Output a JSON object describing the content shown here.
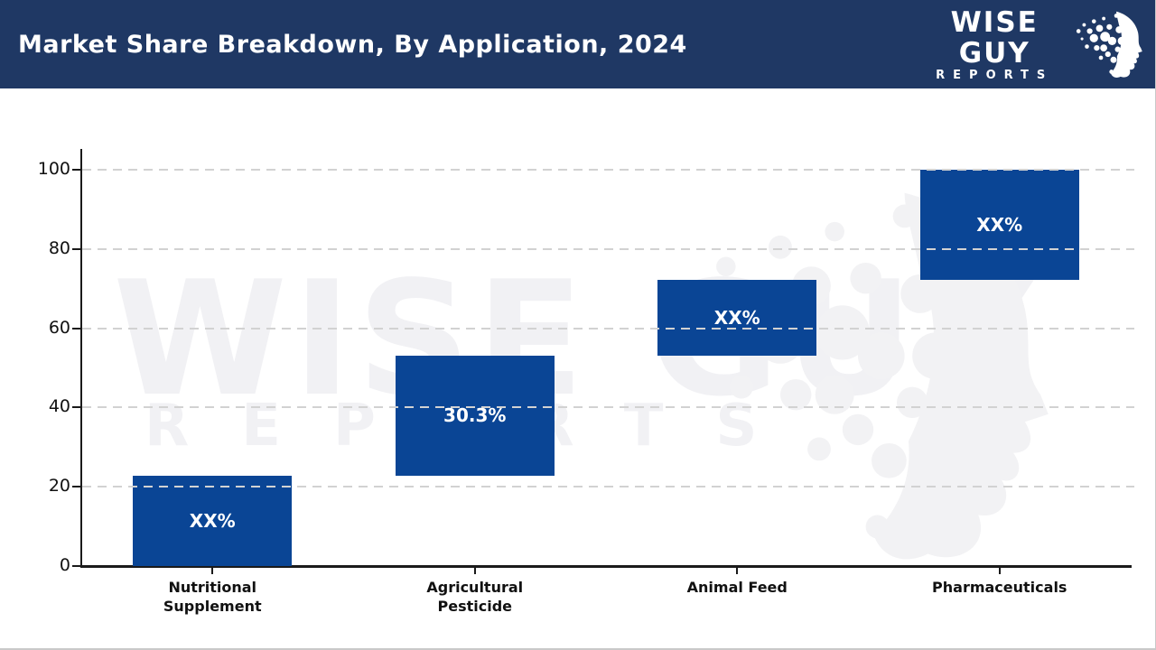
{
  "header": {
    "title": "Market Share Breakdown, By Application, 2024",
    "bg_color": "#1f3864",
    "logo": {
      "line1": "WISE GUY",
      "line2": "REPORTS"
    }
  },
  "watermark": {
    "line1": "WISE GUY",
    "line2": "REPORTS"
  },
  "chart_data": {
    "type": "bar",
    "subtype": "waterfall",
    "title": "Market Share Breakdown, By Application, 2024",
    "xlabel": "",
    "ylabel": "",
    "ylim": [
      0,
      105
    ],
    "yticks": [
      0,
      20,
      40,
      60,
      80,
      100
    ],
    "grid": "horizontal dashed, drawn over bars",
    "legend": "none",
    "bar_color": "#0a4595",
    "value_label_color": "#ffffff",
    "categories": [
      "Nutritional Supplement",
      "Agricultural Pesticide",
      "Animal Feed",
      "Pharmaceuticals"
    ],
    "segments": [
      {
        "category": "Nutritional Supplement",
        "label_lines": [
          "Nutritional",
          "Supplement"
        ],
        "start": 0,
        "end": 22.8,
        "displayed_value": "XX%"
      },
      {
        "category": "Agricultural Pesticide",
        "label_lines": [
          "Agricultural",
          "Pesticide"
        ],
        "start": 22.8,
        "end": 53.1,
        "displayed_value": "30.3%",
        "value": 30.3
      },
      {
        "category": "Animal Feed",
        "label_lines": [
          "Animal Feed"
        ],
        "start": 53.1,
        "end": 72.2,
        "displayed_value": "XX%"
      },
      {
        "category": "Pharmaceuticals",
        "label_lines": [
          "Pharmaceuticals"
        ],
        "start": 72.2,
        "end": 100,
        "displayed_value": "XX%"
      }
    ]
  }
}
